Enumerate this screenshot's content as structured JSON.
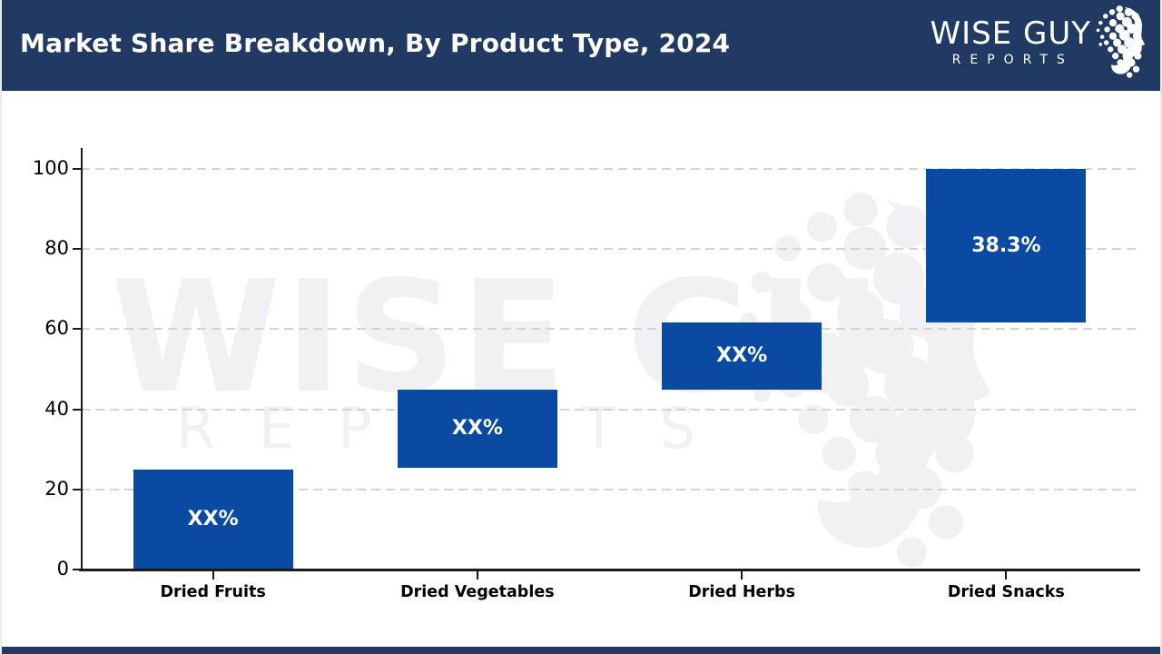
{
  "header": {
    "title": "Market Share Breakdown, By Product Type, 2024",
    "logo": {
      "wordmark": "WISE GUY",
      "subtext": "REPORTS"
    }
  },
  "watermark": {
    "wordmark": "WISE GUY",
    "subtext": "REPORTS"
  },
  "chart_data": {
    "type": "bar",
    "subtype": "floating-segment-waterfall",
    "title": "Market Share Breakdown, By Product Type, 2024",
    "categories": [
      "Dried Fruits",
      "Dried Vegetables",
      "Dried Herbs",
      "Dried Snacks"
    ],
    "segments": [
      {
        "category": "Dried Fruits",
        "start": 0,
        "end": 25,
        "label": "XX%"
      },
      {
        "category": "Dried Vegetables",
        "start": 25.5,
        "end": 45,
        "label": "XX%"
      },
      {
        "category": "Dried Herbs",
        "start": 45,
        "end": 61.7,
        "label": "XX%"
      },
      {
        "category": "Dried Snacks",
        "start": 61.7,
        "end": 100,
        "label": "38.3%"
      }
    ],
    "yticks": [
      0,
      20,
      40,
      60,
      80,
      100
    ],
    "ylim": [
      0,
      105
    ],
    "xlabel": "",
    "ylabel": "",
    "grid": "horizontal-dashed",
    "legend": "none",
    "bar_color": "#0b4aa2"
  },
  "colors": {
    "banner": "#213a64",
    "bar": "#0b4aa2",
    "grid": "#d4d4d4",
    "axis": "#1a1a1a",
    "watermark": "#f1f1f3"
  }
}
